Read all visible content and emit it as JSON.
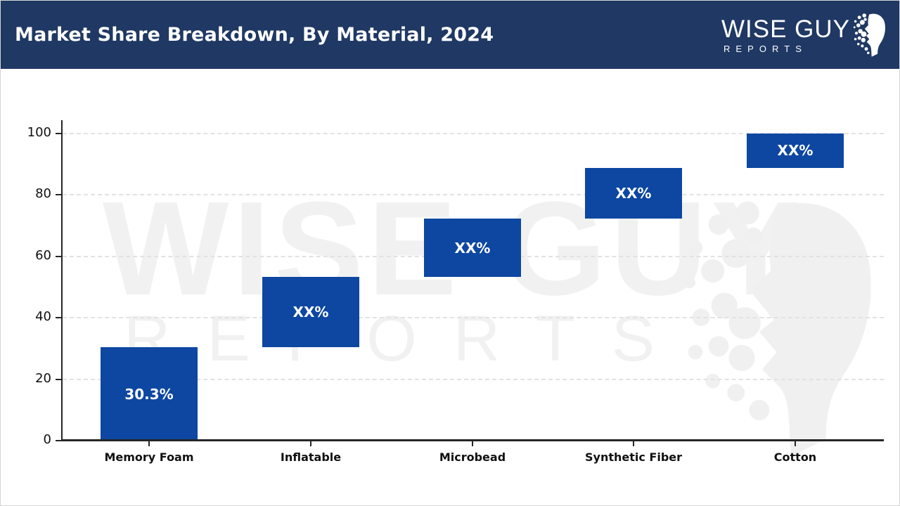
{
  "header": {
    "title": "Market Share Breakdown, By Material, 2024",
    "bg_color": "#1f3864",
    "logo": {
      "line1": "WISE GUY",
      "line2": "REPORTS"
    }
  },
  "watermark": {
    "line1": "WISE GUY",
    "line2": "REPORTS"
  },
  "chart_data": {
    "type": "bar",
    "subtype": "waterfall",
    "title": "Market Share Breakdown, By Material, 2024",
    "xlabel": "",
    "ylabel": "",
    "categories": [
      "Memory Foam",
      "Inflatable",
      "Microbead",
      "Synthetic Fiber",
      "Cotton"
    ],
    "segments": [
      {
        "category": "Memory Foam",
        "start": 0,
        "end": 30.3,
        "label": "30.3%"
      },
      {
        "category": "Inflatable",
        "start": 30.3,
        "end": 53.2,
        "label": "XX%"
      },
      {
        "category": "Microbead",
        "start": 53.2,
        "end": 72.2,
        "label": "XX%"
      },
      {
        "category": "Synthetic Fiber",
        "start": 72.2,
        "end": 88.8,
        "label": "XX%"
      },
      {
        "category": "Cotton",
        "start": 88.8,
        "end": 100,
        "label": "XX%"
      }
    ],
    "yticks": [
      0,
      20,
      40,
      60,
      80,
      100
    ],
    "ylim": [
      0,
      104
    ],
    "grid": true,
    "legend": false,
    "bar_color": "#0d47a1",
    "bar_label_color": "#ffffff",
    "grid_color": "#e2e2e2",
    "axis_color": "#262626",
    "tick_label_color": "#111111"
  }
}
